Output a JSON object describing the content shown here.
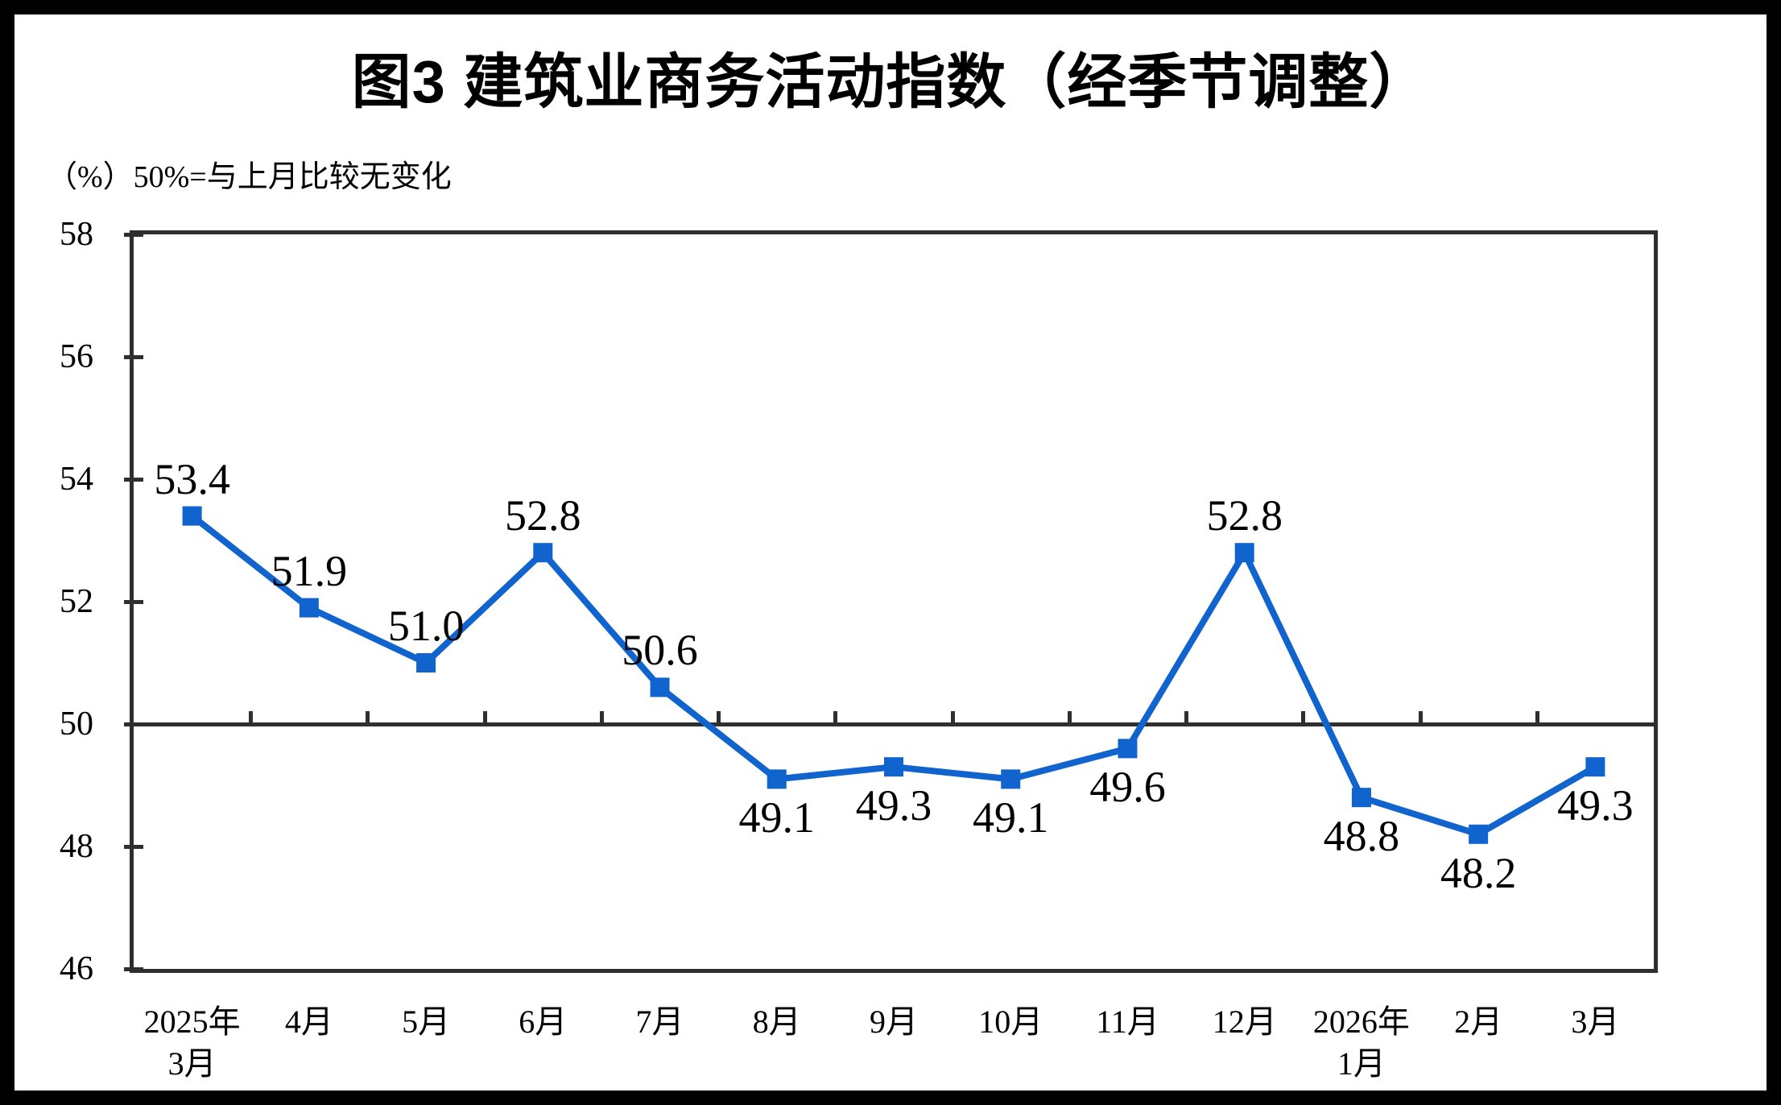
{
  "header": {
    "title": "图3 建筑业商务活动指数（经季节调整）",
    "unit_note": "（%）50%=与上月比较无变化"
  },
  "chart_data": {
    "type": "line",
    "title": "图3 建筑业商务活动指数（经季节调整）",
    "unit_note": "（%）50%=与上月比较无变化",
    "categories": [
      "2025年\n3月",
      "4月",
      "5月",
      "6月",
      "7月",
      "8月",
      "9月",
      "10月",
      "11月",
      "12月",
      "2026年\n1月",
      "2月",
      "3月"
    ],
    "series": [
      {
        "name": "建筑业商务活动指数（经季节调整）",
        "values": [
          53.4,
          51.9,
          51.0,
          52.8,
          50.6,
          49.1,
          49.3,
          49.1,
          49.6,
          52.8,
          48.8,
          48.2,
          49.3
        ],
        "data_labels": [
          "53.4",
          "51.9",
          "51.0",
          "52.8",
          "50.6",
          "49.1",
          "49.3",
          "49.1",
          "49.6",
          "52.8",
          "48.8",
          "48.2",
          "49.3"
        ]
      }
    ],
    "ylim": [
      46,
      58
    ],
    "yticks": [
      58,
      56,
      54,
      52,
      50,
      48,
      46
    ],
    "reference_line": 50,
    "grid": false,
    "legend": "none",
    "marker": "square",
    "line_color": "#1164cd",
    "axis_color": "#2f2f2f",
    "text_color": "#000000",
    "background_color": "#ffffff"
  }
}
